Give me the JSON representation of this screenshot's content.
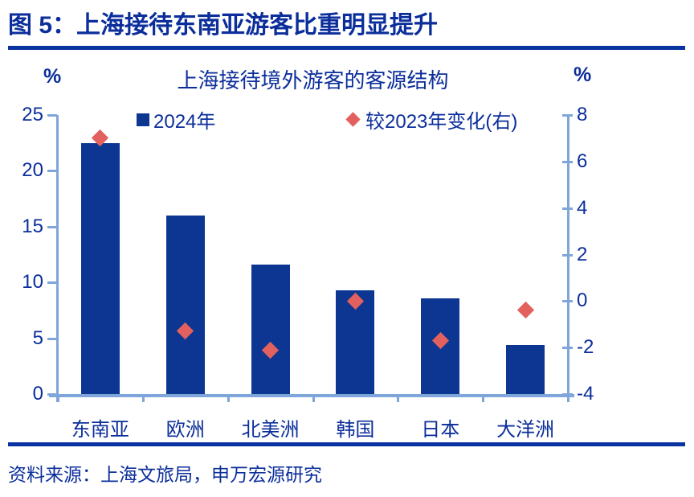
{
  "figure": {
    "title": "图 5：上海接待东南亚游客比重明显提升",
    "source": "资料来源：上海文旅局，申万宏源研究"
  },
  "chart_data": {
    "type": "bar",
    "title": "上海接待境外游客的客源结构",
    "categories": [
      "东南亚",
      "欧洲",
      "北美洲",
      "韩国",
      "日本",
      "大洋洲"
    ],
    "series": [
      {
        "name": "2024年",
        "type": "bar",
        "axis": "left",
        "values": [
          22.5,
          16.0,
          11.6,
          9.3,
          8.6,
          4.4
        ]
      },
      {
        "name": "较2023年变化(右)",
        "type": "scatter",
        "marker": "diamond",
        "axis": "right",
        "values": [
          7.0,
          -1.3,
          -2.1,
          0.0,
          -1.7,
          -0.4
        ]
      }
    ],
    "left_axis": {
      "label": "%",
      "min": 0,
      "max": 25,
      "ticks": [
        0,
        5,
        10,
        15,
        20,
        25
      ]
    },
    "right_axis": {
      "label": "%",
      "min": -4,
      "max": 8,
      "ticks": [
        -4,
        -2,
        0,
        2,
        4,
        6,
        8
      ]
    },
    "legend_position": "top-inside",
    "grid": false,
    "colors": {
      "text": "#0B2E9B",
      "bar": "#0D3692",
      "diamond": "#E2615F",
      "axis_line": "#7EA6DB",
      "rule": "#0933A0"
    }
  }
}
